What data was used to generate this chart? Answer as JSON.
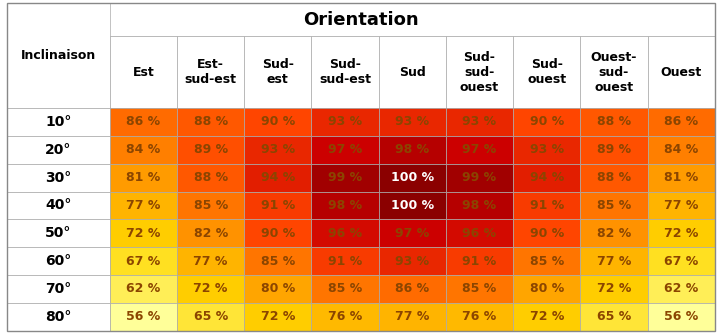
{
  "title": "Orientation",
  "row_header": "Inclinaison",
  "col_headers": [
    "Est",
    "Est-\nsud-est",
    "Sud-\nest",
    "Sud-\nsud-est",
    "Sud",
    "Sud-\nsud-\nouest",
    "Sud-\nouest",
    "Ouest-\nsud-\nouest",
    "Ouest"
  ],
  "row_labels": [
    "10°",
    "20°",
    "30°",
    "40°",
    "50°",
    "60°",
    "70°",
    "80°"
  ],
  "values": [
    [
      86,
      88,
      90,
      93,
      93,
      93,
      90,
      88,
      86
    ],
    [
      84,
      89,
      93,
      97,
      98,
      97,
      93,
      89,
      84
    ],
    [
      81,
      88,
      94,
      99,
      100,
      99,
      94,
      88,
      81
    ],
    [
      77,
      85,
      91,
      98,
      100,
      98,
      91,
      85,
      77
    ],
    [
      72,
      82,
      90,
      96,
      97,
      96,
      90,
      82,
      72
    ],
    [
      67,
      77,
      85,
      91,
      93,
      91,
      85,
      77,
      67
    ],
    [
      62,
      72,
      80,
      85,
      86,
      85,
      80,
      72,
      62
    ],
    [
      56,
      65,
      72,
      76,
      77,
      76,
      72,
      65,
      56
    ]
  ],
  "special_white_text": [
    [
      2,
      4
    ],
    [
      3,
      4
    ]
  ],
  "title_fontsize": 13,
  "header_fontsize": 9,
  "cell_fontsize": 9,
  "row_label_fontsize": 10,
  "bg_color": "#ffffff",
  "header_bg": "#ffffff",
  "title_color": "#000000",
  "row_label_color": "#000000",
  "col_header_color": "#000000",
  "cell_text_color_dark": "#8B4500",
  "cell_text_color_white": "#ffffff",
  "color_stops": [
    [
      56,
      "#FFFF99"
    ],
    [
      70,
      "#FFD700"
    ],
    [
      80,
      "#FFA500"
    ],
    [
      90,
      "#FF4500"
    ],
    [
      97,
      "#CC0000"
    ],
    [
      100,
      "#8B0000"
    ]
  ]
}
